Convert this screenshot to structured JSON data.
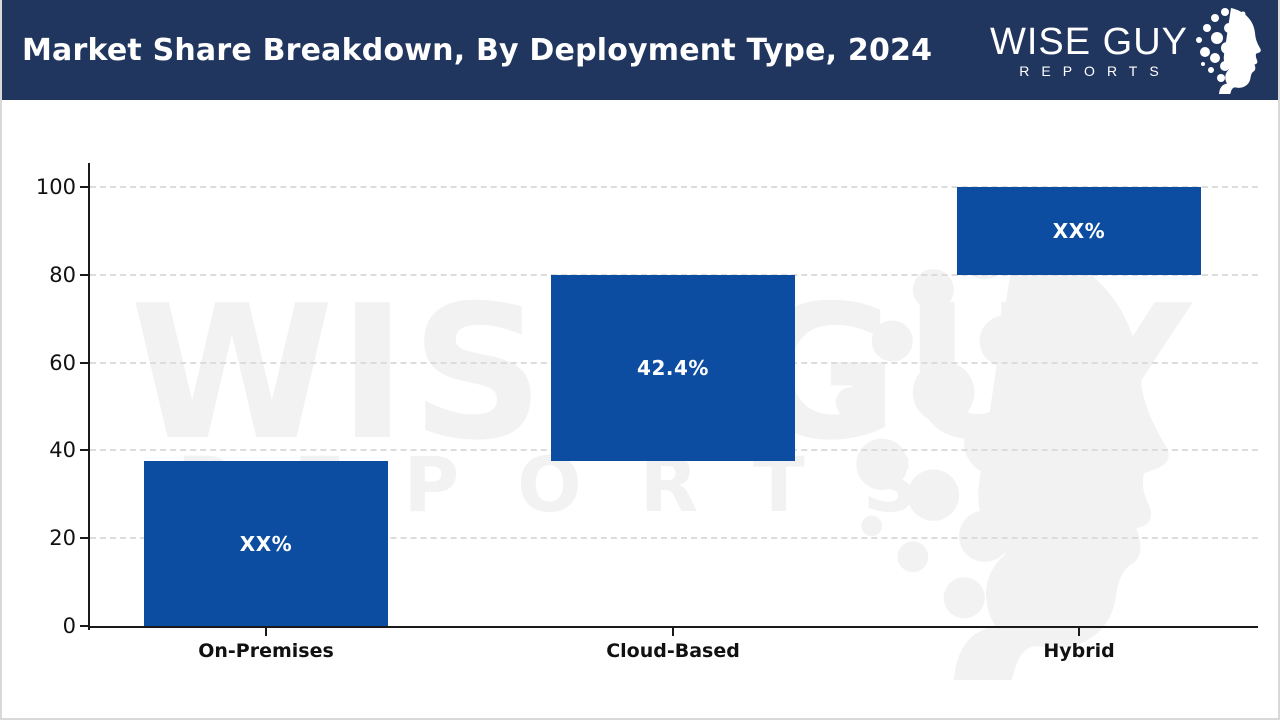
{
  "header": {
    "title": "Market Share Breakdown, By Deployment Type, 2024",
    "logo": {
      "line1": "WISE GUY",
      "line2": "REPORTS"
    }
  },
  "watermark": {
    "line1": "WISE GUY",
    "line2": "REPORTS"
  },
  "chart_data": {
    "type": "bar",
    "subtype": "waterfall",
    "title": "Market Share Breakdown, By Deployment Type, 2024",
    "categories": [
      "On-Premises",
      "Cloud-Based",
      "Hybrid"
    ],
    "segments": [
      {
        "category": "On-Premises",
        "start": 0,
        "end": 37.6,
        "value": 37.6,
        "label": "XX%"
      },
      {
        "category": "Cloud-Based",
        "start": 37.6,
        "end": 80,
        "value": 42.4,
        "label": "42.4%"
      },
      {
        "category": "Hybrid",
        "start": 80,
        "end": 100,
        "value": 20,
        "label": "XX%"
      }
    ],
    "yticks": [
      0,
      20,
      40,
      60,
      80,
      100
    ],
    "ylim": [
      0,
      105.5
    ],
    "xlabel": "",
    "ylabel": "",
    "grid": "dashed-horizontal",
    "legend": "none",
    "bar_color": "#0C4DA2",
    "bar_label_color": "#ffffff"
  },
  "colors": {
    "header_bg": "#21365F",
    "title_text": "#ffffff",
    "axis": "#1a1a1a",
    "gridline": "#dcdcdc",
    "watermark": "#f2f2f2",
    "page_border": "#d9d9d9"
  }
}
